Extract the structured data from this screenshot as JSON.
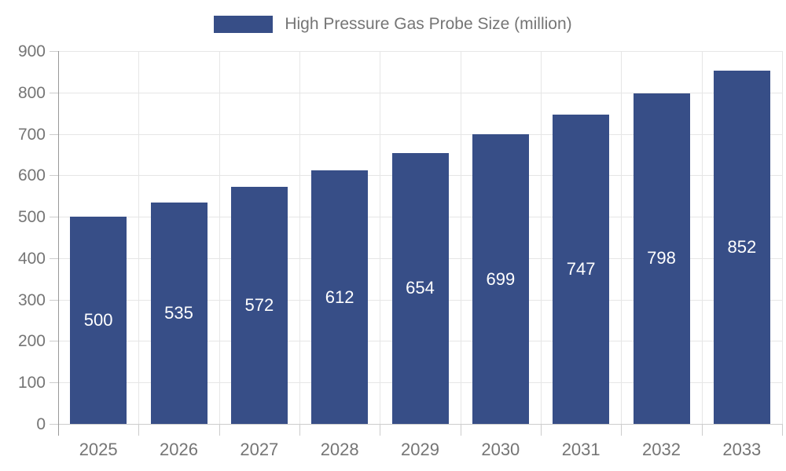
{
  "chart_data": {
    "type": "bar",
    "title": "High Pressure Gas Probe Size (million)",
    "categories": [
      "2025",
      "2026",
      "2027",
      "2028",
      "2029",
      "2030",
      "2031",
      "2032",
      "2033"
    ],
    "values": [
      500,
      535,
      572,
      612,
      654,
      699,
      747,
      798,
      852
    ],
    "xlabel": "",
    "ylabel": "",
    "ylim": [
      0,
      900
    ],
    "ytick_step": 100,
    "grid": true,
    "legend_position": "top",
    "colors": {
      "bar": "#374E87",
      "value_label": "#ffffff",
      "axis_text": "#757575",
      "grid_line": "#e6e6e6",
      "y_axis_line": "#999999",
      "x_axis_line": "#cccccc",
      "tick_mark": "#cccccc"
    }
  }
}
